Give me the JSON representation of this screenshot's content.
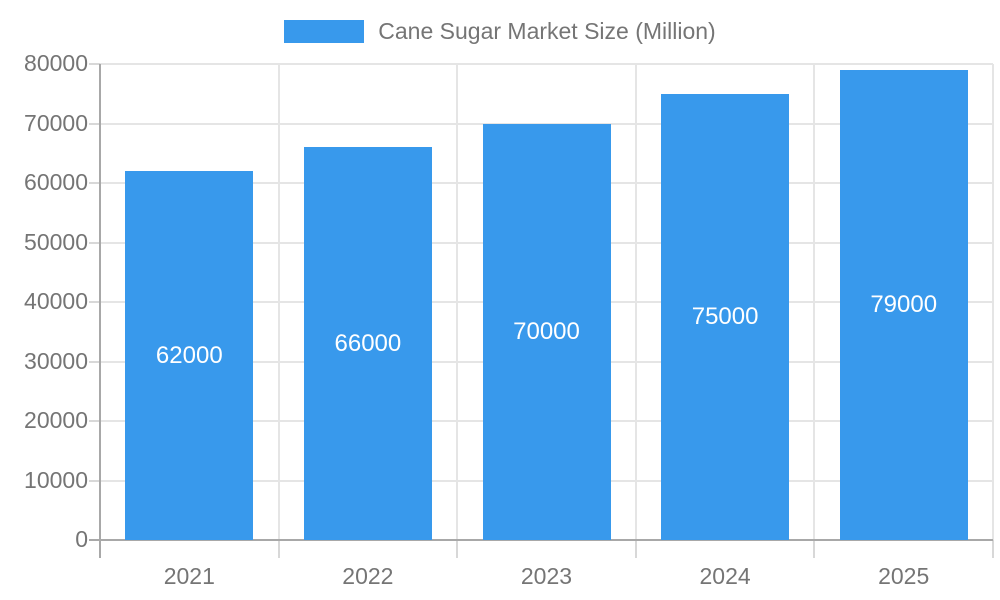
{
  "legend": {
    "label": "Cane Sugar Market Size (Million)"
  },
  "colors": {
    "bar": "#3899EC",
    "bar_label": "#FFFFFF",
    "grid": "#E5E5E5",
    "axis": "#A8A8A8",
    "tick": "#D8D8D8",
    "text": "#757575",
    "background": "#FFFFFF"
  },
  "chart_data": {
    "type": "bar",
    "title": "Cane Sugar Market Size (Million)",
    "categories": [
      "2021",
      "2022",
      "2023",
      "2024",
      "2025"
    ],
    "values": [
      62000,
      66000,
      70000,
      75000,
      79000
    ],
    "xlabel": "",
    "ylabel": "",
    "ylim": [
      0,
      80000
    ],
    "ytick_step": 10000,
    "ytick_labels": [
      "0",
      "10000",
      "20000",
      "30000",
      "40000",
      "50000",
      "60000",
      "70000",
      "80000"
    ],
    "grid": true,
    "legend_position": "top",
    "bar_labels": [
      "62000",
      "66000",
      "70000",
      "75000",
      "79000"
    ],
    "bar_labels_position": "center-inside"
  }
}
